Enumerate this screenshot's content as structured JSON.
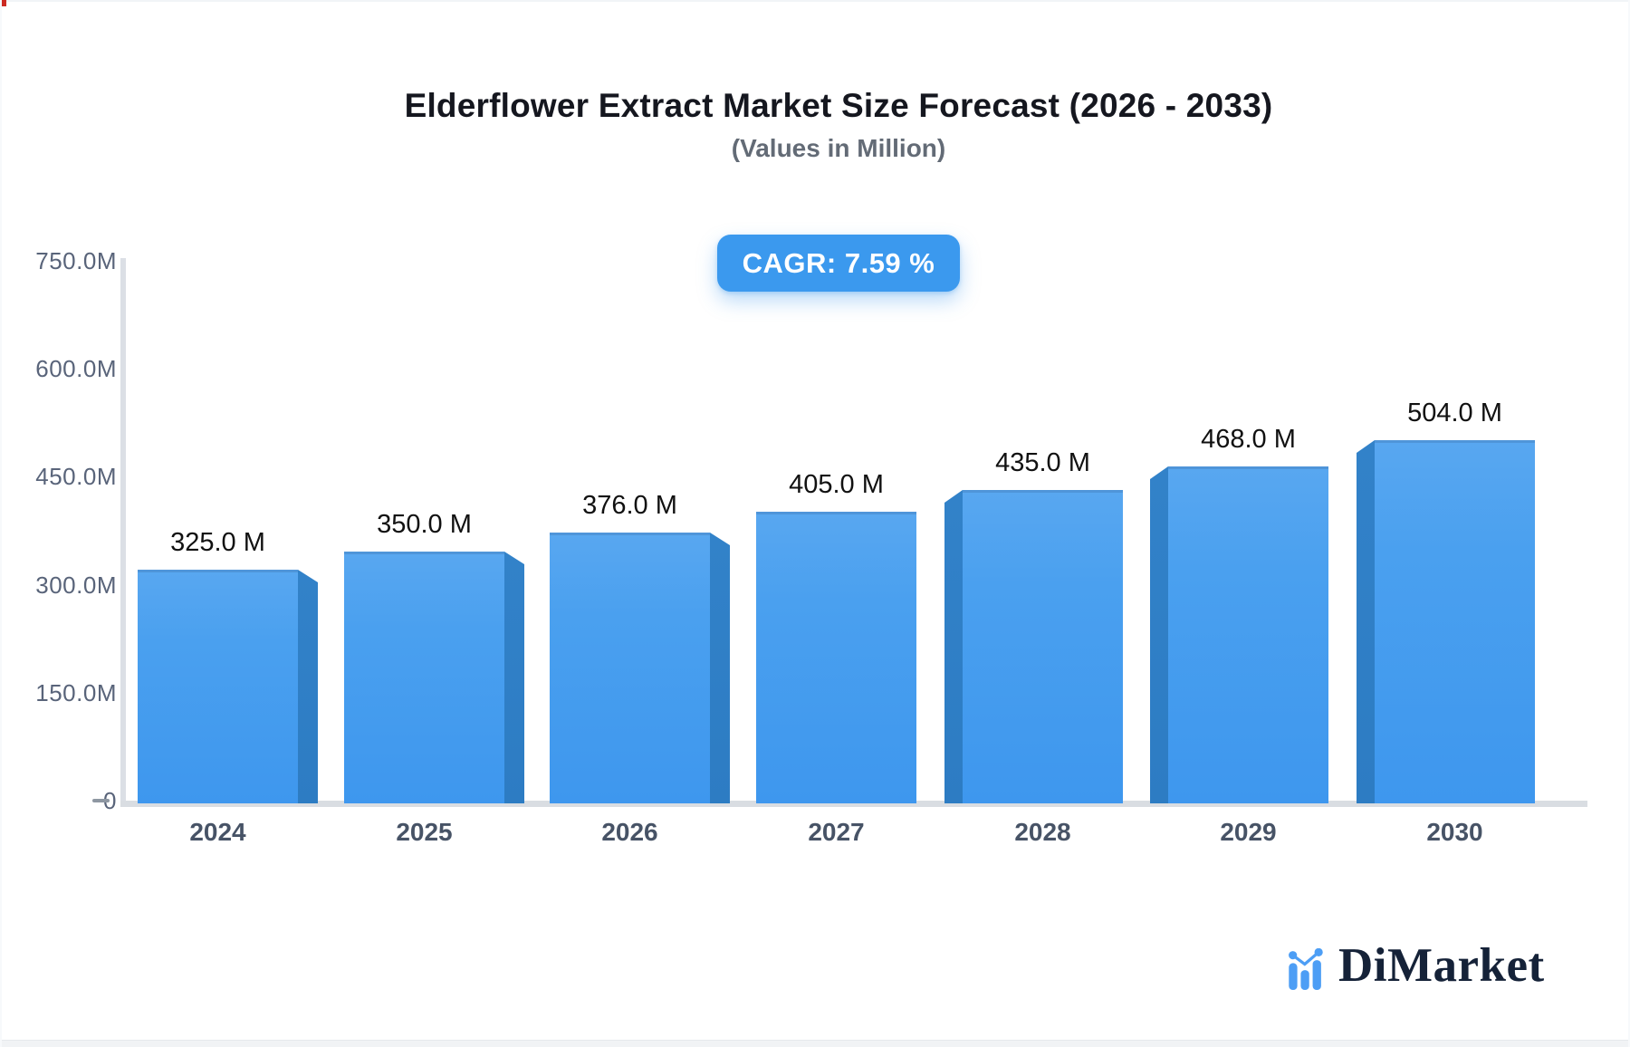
{
  "title": "Elderflower Extract Market Size Forecast (2026 - 2033)",
  "subtitle": "(Values in Million)",
  "badge": {
    "label": "CAGR: 7.59 %"
  },
  "chart_data": {
    "type": "bar",
    "title": "Elderflower Extract Market Size Forecast (2026 - 2033)",
    "subtitle": "(Values in Million)",
    "categories": [
      "2024",
      "2025",
      "2026",
      "2027",
      "2028",
      "2029",
      "2030"
    ],
    "values": [
      325,
      350,
      376,
      405,
      435,
      468,
      504
    ],
    "bar_labels": [
      "325.0 M",
      "350.0 M",
      "376.0 M",
      "405.0 M",
      "435.0 M",
      "468.0 M",
      "504.0 M"
    ],
    "unit": "M",
    "ylim": [
      0,
      750
    ],
    "yticks": [
      {
        "label": "750.0M",
        "value": 750
      },
      {
        "label": "600.0M",
        "value": 600
      },
      {
        "label": "450.0M",
        "value": 450
      },
      {
        "label": "300.0M",
        "value": 300
      },
      {
        "label": "150.0M",
        "value": 150
      },
      {
        "label": "0",
        "value": 0
      }
    ],
    "grid": false,
    "legend": false,
    "bar_color": "#3e97ee",
    "bar_side_color": "#2d7cc3"
  },
  "logo": {
    "text": "DiMarket"
  },
  "colors": {
    "accent_blue": "#3b99ee",
    "bar_blue": "#3e97ee",
    "bar_side_blue": "#2d7cc3",
    "axis_gray": "#d9dde2",
    "title_dark": "#15171f",
    "subtitle_gray": "#636b76",
    "logo_navy": "#152238"
  }
}
